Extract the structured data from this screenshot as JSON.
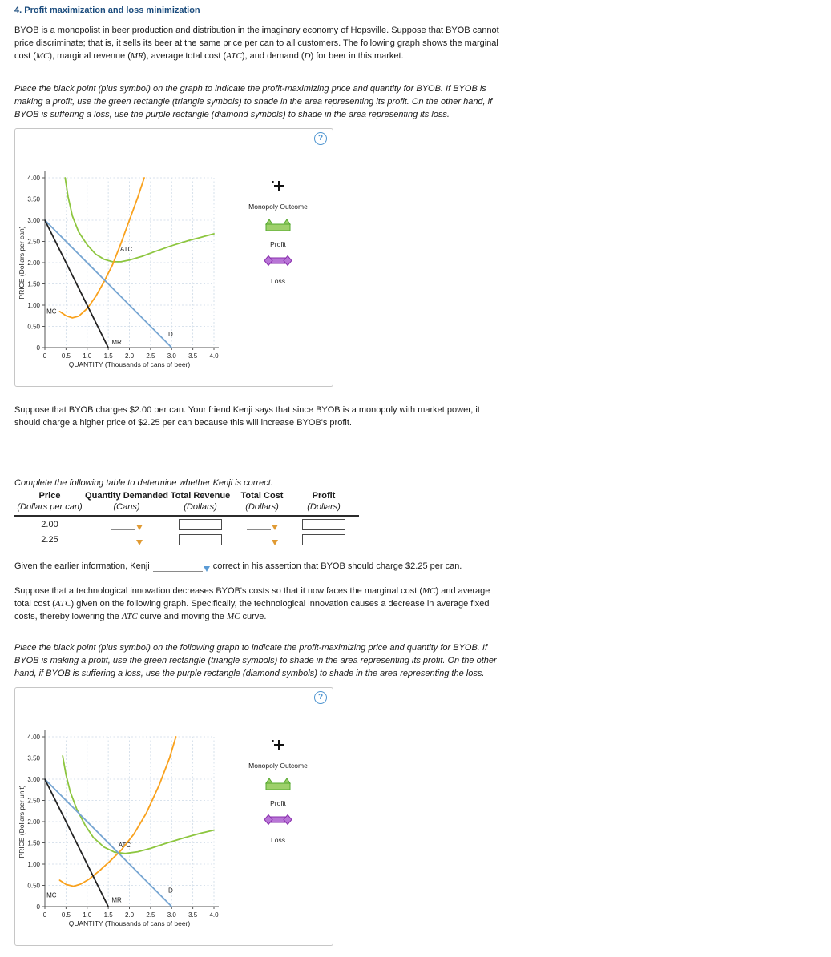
{
  "page": {
    "title": "4. Profit maximization and loss minimization"
  },
  "colors": {
    "title_blue": "#1b4c7d",
    "help_blue": "#4d94d0",
    "dropdown_orange": "#e09a33",
    "dropdown_blue": "#5b9bd5",
    "profit_fill": "#9ed06b",
    "profit_border": "#54a82e",
    "loss_fill": "#b875d6",
    "loss_border": "#8a2fae"
  },
  "help": "?",
  "intro": {
    "t1": "BYOB is a monopolist in beer production and distribution in the imaginary economy of Hopsville. Suppose that BYOB cannot price discriminate; that is, it sells its beer at the same price per can to all customers. The following graph shows the marginal cost (",
    "v1": "MC",
    "t2": "), marginal revenue (",
    "v2": "MR",
    "t3": "), average total cost (",
    "v3": "ATC",
    "t4": "), and demand (",
    "v4": "D",
    "t5": ") for beer in this market."
  },
  "instructions1": "Place the black point (plus symbol) on the graph to indicate the profit-maximizing price and quantity for BYOB. If BYOB is making a profit, use the green rectangle (triangle symbols) to shade in the area representing its profit. On the other hand, if BYOB is suffering a loss, use the purple rectangle (diamond symbols) to shade in the area representing its loss.",
  "legend": {
    "monopoly": "Monopoly Outcome",
    "profit": "Profit",
    "loss": "Loss"
  },
  "kenji_paragraph": "Suppose that BYOB charges $2.00 per can. Your friend Kenji says that since BYOB is a monopoly with market power, it should charge a higher price of $2.25 per can because this will increase BYOB's profit.",
  "table_intro": "Complete the following table to determine whether Kenji is correct.",
  "table": {
    "headers": [
      {
        "line1": "Price",
        "line2": "(Dollars per can)"
      },
      {
        "line1": "Quantity Demanded",
        "line2": "(Cans)"
      },
      {
        "line1": "Total Revenue",
        "line2": "(Dollars)"
      },
      {
        "line1": "Total Cost",
        "line2": "(Dollars)"
      },
      {
        "line1": "Profit",
        "line2": "(Dollars)"
      }
    ],
    "rows": [
      {
        "price": "2.00"
      },
      {
        "price": "2.25"
      }
    ]
  },
  "conclusion": {
    "t1": "Given the earlier information, Kenji",
    "t2": "correct in his assertion that BYOB should charge $2.25 per can."
  },
  "tech": {
    "t1": "Suppose that a technological innovation decreases BYOB's costs so that it now faces the marginal cost (",
    "v1": "MC",
    "t2": ") and average total cost (",
    "v2": "ATC",
    "t3": ") given on the following graph. Specifically, the technological innovation causes a decrease in average fixed costs, thereby lowering the ",
    "v3": "ATC",
    "t4": " curve and moving the ",
    "v4": "MC",
    "t5": " curve."
  },
  "instructions2": "Place the black point (plus symbol) on the following graph to indicate the profit-maximizing price and quantity for BYOB. If BYOB is making a profit, use the green rectangle (triangle symbols) to shade in the area representing its profit. On the other hand, if BYOB is suffering a loss, use the purple rectangle (diamond symbols) to shade in the area representing the loss.",
  "chart_data": [
    {
      "type": "line",
      "title": "",
      "xlabel": "QUANTITY (Thousands of cans of beer)",
      "ylabel": "PRICE (Dollars per can)",
      "xlim": [
        0,
        4
      ],
      "ylim": [
        0,
        4
      ],
      "grid": true,
      "xticks": [
        0,
        0.5,
        1,
        1.5,
        2,
        2.5,
        3,
        3.5,
        4
      ],
      "xtick_labels": [
        "0",
        "0.5",
        "1.0",
        "1.5",
        "2.0",
        "2.5",
        "3.0",
        "3.5",
        "4.0"
      ],
      "yticks": [
        0,
        0.5,
        1,
        1.5,
        2,
        2.5,
        3,
        3.5,
        4
      ],
      "ytick_labels": [
        "0",
        "0.50",
        "1.00",
        "1.50",
        "2.00",
        "2.50",
        "3.00",
        "3.50",
        "4.00"
      ],
      "series": [
        {
          "name": "atc",
          "label": "ATC",
          "color": "#8dc63f",
          "label_pos": [
            1.78,
            2.26
          ],
          "points": [
            [
              0.48,
              4.0
            ],
            [
              0.55,
              3.55
            ],
            [
              0.65,
              3.1
            ],
            [
              0.8,
              2.72
            ],
            [
              1.0,
              2.42
            ],
            [
              1.2,
              2.2
            ],
            [
              1.4,
              2.08
            ],
            [
              1.6,
              2.02
            ],
            [
              1.8,
              2.02
            ],
            [
              2.0,
              2.06
            ],
            [
              2.3,
              2.15
            ],
            [
              2.6,
              2.26
            ],
            [
              3.0,
              2.4
            ],
            [
              3.4,
              2.52
            ],
            [
              3.7,
              2.6
            ],
            [
              4.0,
              2.68
            ]
          ]
        },
        {
          "name": "mc",
          "label": "MC",
          "color": "#f9a11c",
          "label_pos": [
            0.04,
            0.8
          ],
          "points": [
            [
              0.35,
              0.85
            ],
            [
              0.5,
              0.75
            ],
            [
              0.65,
              0.7
            ],
            [
              0.8,
              0.74
            ],
            [
              1.0,
              0.92
            ],
            [
              1.2,
              1.2
            ],
            [
              1.4,
              1.55
            ],
            [
              1.6,
              1.95
            ],
            [
              1.8,
              2.45
            ],
            [
              2.0,
              3.0
            ],
            [
              2.2,
              3.55
            ],
            [
              2.35,
              4.0
            ]
          ]
        },
        {
          "name": "d",
          "label": "D",
          "color": "#76a5d2",
          "label_pos": [
            2.92,
            0.26
          ],
          "points": [
            [
              0,
              3.0
            ],
            [
              3.0,
              0
            ]
          ]
        },
        {
          "name": "mr",
          "label": "MR",
          "color": "#222222",
          "label_pos": [
            1.58,
            0.08
          ],
          "points": [
            [
              0,
              3.0
            ],
            [
              1.5,
              0
            ]
          ]
        }
      ]
    },
    {
      "type": "line",
      "title": "",
      "xlabel": "QUANTITY (Thousands of cans of beer)",
      "ylabel": "PRICE (Dollars per unit)",
      "xlim": [
        0,
        4
      ],
      "ylim": [
        0,
        4
      ],
      "grid": true,
      "xticks": [
        0,
        0.5,
        1,
        1.5,
        2,
        2.5,
        3,
        3.5,
        4
      ],
      "xtick_labels": [
        "0",
        "0.5",
        "1.0",
        "1.5",
        "2.0",
        "2.5",
        "3.0",
        "3.5",
        "4.0"
      ],
      "yticks": [
        0,
        0.5,
        1,
        1.5,
        2,
        2.5,
        3,
        3.5,
        4
      ],
      "ytick_labels": [
        "0",
        "0.50",
        "1.00",
        "1.50",
        "2.00",
        "2.50",
        "3.00",
        "3.50",
        "4.00"
      ],
      "series": [
        {
          "name": "atc",
          "label": "ATC",
          "color": "#8dc63f",
          "label_pos": [
            1.74,
            1.4
          ],
          "points": [
            [
              0.42,
              3.55
            ],
            [
              0.5,
              3.1
            ],
            [
              0.6,
              2.7
            ],
            [
              0.75,
              2.3
            ],
            [
              0.95,
              1.92
            ],
            [
              1.15,
              1.62
            ],
            [
              1.4,
              1.4
            ],
            [
              1.65,
              1.28
            ],
            [
              1.9,
              1.25
            ],
            [
              2.2,
              1.29
            ],
            [
              2.5,
              1.37
            ],
            [
              2.9,
              1.5
            ],
            [
              3.3,
              1.62
            ],
            [
              3.7,
              1.73
            ],
            [
              4.0,
              1.8
            ]
          ]
        },
        {
          "name": "mc",
          "label": "MC",
          "color": "#f9a11c",
          "label_pos": [
            0.04,
            0.22
          ],
          "points": [
            [
              0.35,
              0.62
            ],
            [
              0.5,
              0.52
            ],
            [
              0.68,
              0.48
            ],
            [
              0.85,
              0.53
            ],
            [
              1.05,
              0.65
            ],
            [
              1.3,
              0.85
            ],
            [
              1.55,
              1.08
            ],
            [
              1.8,
              1.32
            ],
            [
              2.1,
              1.7
            ],
            [
              2.4,
              2.2
            ],
            [
              2.7,
              2.85
            ],
            [
              2.95,
              3.5
            ],
            [
              3.1,
              4.0
            ]
          ]
        },
        {
          "name": "d",
          "label": "D",
          "color": "#76a5d2",
          "label_pos": [
            2.92,
            0.33
          ],
          "points": [
            [
              0,
              3.0
            ],
            [
              3.0,
              0
            ]
          ]
        },
        {
          "name": "mr",
          "label": "MR",
          "color": "#222222",
          "label_pos": [
            1.58,
            0.1
          ],
          "points": [
            [
              0,
              3.0
            ],
            [
              1.5,
              0
            ]
          ]
        }
      ]
    }
  ]
}
